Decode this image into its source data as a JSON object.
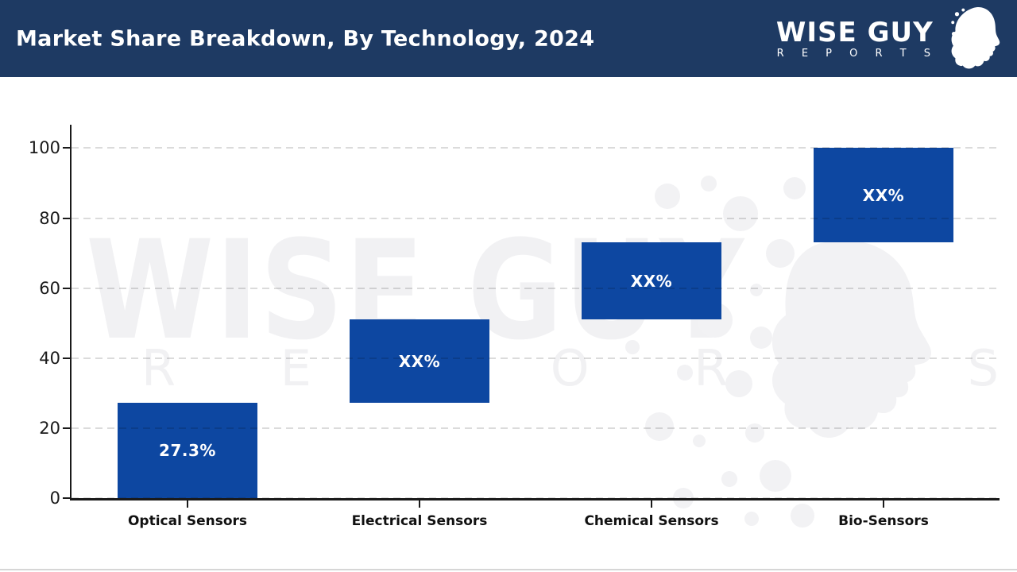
{
  "header": {
    "title": "Market Share Breakdown, By Technology, 2024",
    "logo": {
      "line1": "WISE GUY",
      "line2": "R E P O R T S"
    }
  },
  "watermark": {
    "line1": "WISE GUY",
    "line2": "R E P O R T S"
  },
  "chart_data": {
    "type": "bar",
    "subtype": "waterfall",
    "title": "Market Share Breakdown, By Technology, 2024",
    "xlabel": "",
    "ylabel": "",
    "categories": [
      "Optical Sensors",
      "Electrical Sensors",
      "Chemical Sensors",
      "Bio-Sensors"
    ],
    "bars": [
      {
        "category": "Optical Sensors",
        "start": 0,
        "end": 27.3,
        "label": "27.3%"
      },
      {
        "category": "Electrical Sensors",
        "start": 27.3,
        "end": 51,
        "label": "XX%"
      },
      {
        "category": "Chemical Sensors",
        "start": 51,
        "end": 73,
        "label": "XX%"
      },
      {
        "category": "Bio-Sensors",
        "start": 73,
        "end": 100,
        "label": "XX%"
      }
    ],
    "yticks": [
      0,
      20,
      40,
      60,
      80,
      100
    ],
    "ylim": [
      0,
      106
    ],
    "grid": "horizontal-dashed",
    "legend": "none",
    "bar_color": "#0d47a1",
    "bar_label_color": "#ffffff",
    "header_color": "#1e3a63",
    "axis_color": "#1a1a1a",
    "watermark_color": "#f1f1f3"
  }
}
